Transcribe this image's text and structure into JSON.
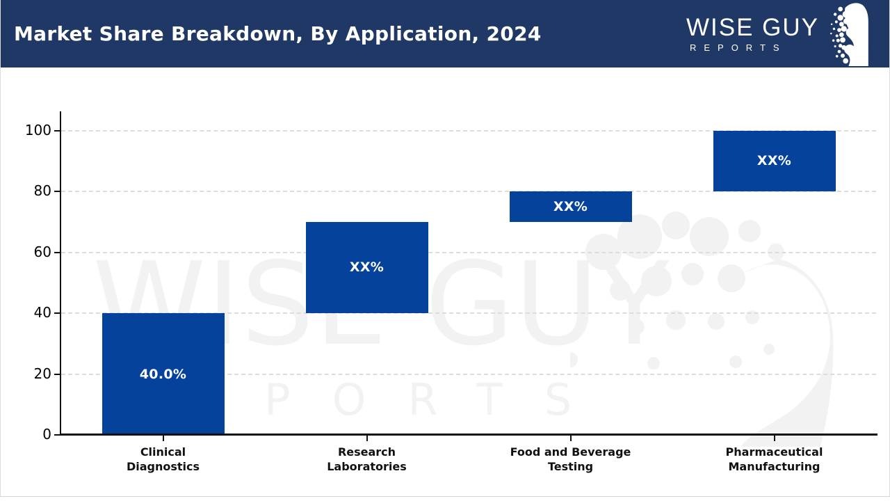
{
  "header": {
    "title": "Market Share Breakdown, By Application, 2024",
    "logo": {
      "line1": "WISE GUY",
      "line2": "REPORTS",
      "face_icon": "dotted-face-profile-icon"
    }
  },
  "watermark": {
    "line1": "WISE GUY",
    "line2": "REPORTS"
  },
  "chart_data": {
    "type": "bar",
    "subtype": "waterfall",
    "title": "Market Share Breakdown, By Application, 2024",
    "categories": [
      "Clinical Diagnostics",
      "Research Laboratories",
      "Food and Beverage Testing",
      "Pharmaceutical Manufacturing"
    ],
    "bars": [
      {
        "category_lines": [
          "Clinical",
          "Diagnostics"
        ],
        "start": 0,
        "end": 40,
        "value": 40,
        "label": "40.0%"
      },
      {
        "category_lines": [
          "Research",
          "Laboratories"
        ],
        "start": 40,
        "end": 70,
        "value": 30,
        "label": "XX%"
      },
      {
        "category_lines": [
          "Food and Beverage",
          "Testing"
        ],
        "start": 70,
        "end": 80,
        "value": 10,
        "label": "XX%"
      },
      {
        "category_lines": [
          "Pharmaceutical",
          "Manufacturing"
        ],
        "start": 80,
        "end": 100,
        "value": 20,
        "label": "XX%"
      }
    ],
    "xlabel": "",
    "ylabel": "",
    "ylim": [
      0,
      100
    ],
    "yticks": [
      0,
      20,
      40,
      60,
      80,
      100
    ],
    "grid": "dashed-horizontal",
    "legend": "none",
    "colors": {
      "bar": "#04429b",
      "header_bg": "#1f3866",
      "axis": "#111111",
      "gridline": "#dcdcdc",
      "bar_label_text": "#ffffff",
      "watermark": "#f2f2f2"
    }
  }
}
